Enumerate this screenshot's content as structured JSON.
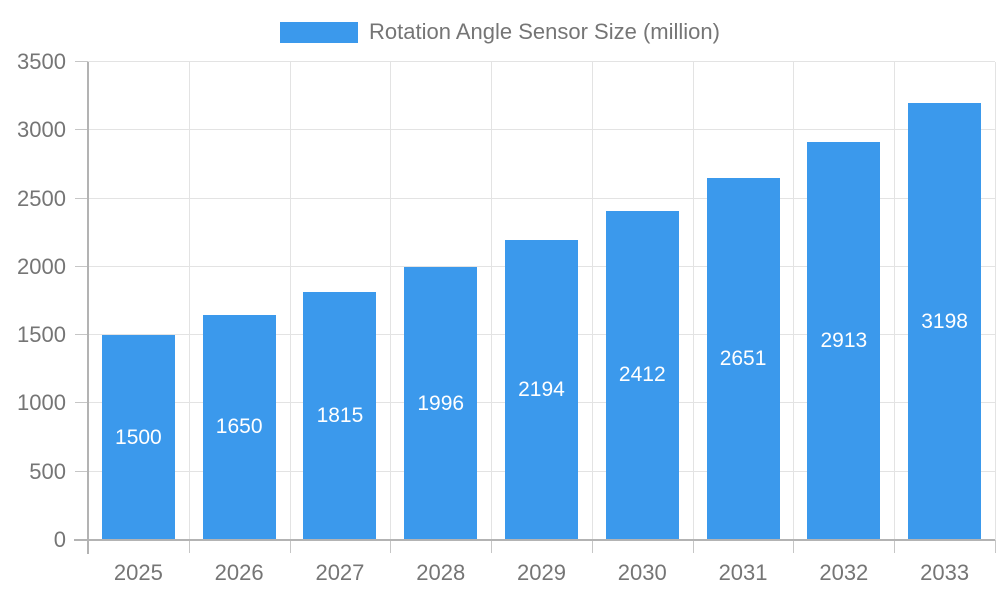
{
  "chart_data": {
    "type": "bar",
    "title": "Rotation Angle Sensor Size (million)",
    "categories": [
      "2025",
      "2026",
      "2027",
      "2028",
      "2029",
      "2030",
      "2031",
      "2032",
      "2033"
    ],
    "values": [
      1500,
      1650,
      1815,
      1996,
      2194,
      2412,
      2651,
      2913,
      3198
    ],
    "series": [
      {
        "name": "Rotation Angle Sensor Size (million)",
        "values": [
          1500,
          1650,
          1815,
          1996,
          2194,
          2412,
          2651,
          2913,
          3198
        ]
      }
    ],
    "xlabel": "",
    "ylabel": "",
    "ylim": [
      0,
      3500
    ],
    "yticks": [
      0,
      500,
      1000,
      1500,
      2000,
      2500,
      3000,
      3500
    ],
    "grid": true,
    "legend_position": "top-center",
    "value_labels_position": "inside-center"
  },
  "colors": {
    "bar": "#3b99ec",
    "grid": "#e3e3e3",
    "axis": "#b3b3b3",
    "tick": "#c6c6c6",
    "text": "#757575",
    "value_label": "#ffffff",
    "background": "#ffffff"
  }
}
